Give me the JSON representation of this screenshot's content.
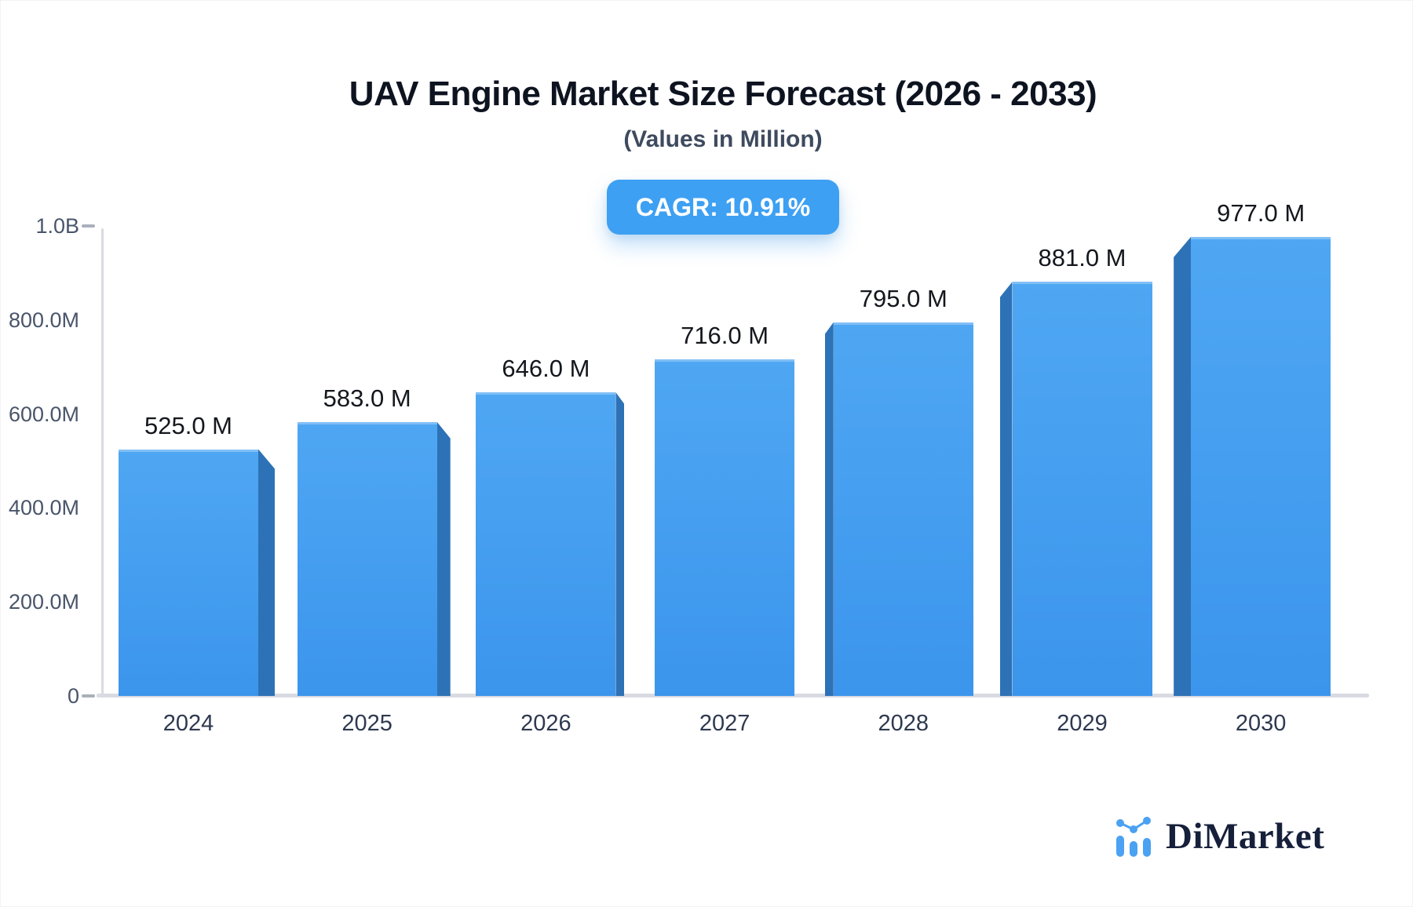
{
  "title": "UAV Engine Market Size Forecast (2026 - 2033)",
  "subtitle": "(Values in Million)",
  "cagr_badge": {
    "label": "CAGR: 10.91%"
  },
  "chart_data": {
    "type": "bar",
    "title": "UAV Engine Market Size Forecast (2026 - 2033)",
    "subtitle": "(Values in Million)",
    "categories": [
      "2024",
      "2025",
      "2026",
      "2027",
      "2028",
      "2029",
      "2030"
    ],
    "values": [
      525,
      583,
      646,
      716,
      795,
      881,
      977
    ],
    "value_labels": [
      "525.0 M",
      "583.0 M",
      "646.0 M",
      "716.0 M",
      "795.0 M",
      "881.0 M",
      "977.0 M"
    ],
    "annotations": [
      "CAGR: 10.91%"
    ],
    "xlabel": "",
    "ylabel": "",
    "ylim": [
      0,
      1000
    ],
    "yticks": [
      {
        "label": "0",
        "value": 0
      },
      {
        "label": "200.0M",
        "value": 200
      },
      {
        "label": "400.0M",
        "value": 400
      },
      {
        "label": "600.0M",
        "value": 600
      },
      {
        "label": "800.0M",
        "value": 800
      },
      {
        "label": "1.0B",
        "value": 1000
      }
    ],
    "grid": false,
    "legend": false,
    "bar_style": "3d-extruded, perspective toward center bar"
  },
  "colors": {
    "bar_face_top": "#4FA7F3",
    "bar_face_bottom": "#3B95EC",
    "bar_side": "#2D72B6",
    "badge_bg": "#3DA0F3",
    "badge_text": "#FFFFFF",
    "axis": "#D8DBE1",
    "tick_dash": "#A9B0BB",
    "title_text": "#0E1320",
    "subtitle_text": "#3E4A5E",
    "value_label_text": "#14171D",
    "year_label_text": "#2E3950",
    "ytick_label_text": "#49556A"
  },
  "logo": {
    "text": "DiMarket",
    "text_color": "#16203A",
    "icon_color": "#4BA1F2",
    "icon": "bar-chart-logo-icon"
  }
}
